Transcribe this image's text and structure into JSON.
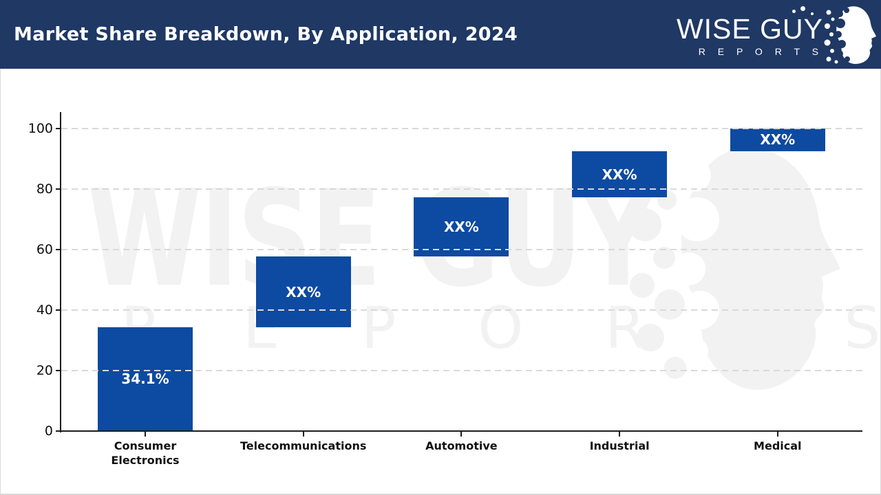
{
  "header": {
    "title": "Market Share Breakdown, By Application, 2024",
    "bg_color": "#1f3864",
    "logo": {
      "line1": "WISE GUY",
      "line2": "R E P O R T S"
    }
  },
  "watermark": {
    "line1": "WISE GUY",
    "line2": "R E P O R T S"
  },
  "chart_data": {
    "type": "bar",
    "subtype": "waterfall",
    "title": "Market Share Breakdown, By Application, 2024",
    "categories": [
      "Consumer Electronics",
      "Telecommunications",
      "Automotive",
      "Industrial",
      "Medical"
    ],
    "category_lines": [
      [
        "Consumer",
        "Electronics"
      ],
      [
        "Telecommunications"
      ],
      [
        "Automotive"
      ],
      [
        "Industrial"
      ],
      [
        "Medical"
      ]
    ],
    "starts": [
      0,
      34.1,
      57.6,
      77.1,
      92.4
    ],
    "values": [
      34.1,
      23.5,
      19.5,
      15.3,
      7.6
    ],
    "bar_labels": [
      "34.1%",
      "XX%",
      "XX%",
      "XX%",
      "XX%"
    ],
    "yticks": [
      0,
      20,
      40,
      60,
      80,
      100
    ],
    "ylim": [
      0,
      105
    ],
    "xlabel": "",
    "ylabel": "",
    "grid": {
      "axis": "y",
      "style": "dashed",
      "color": "#d9d9d9"
    },
    "bar_color": "#0d4aa1",
    "bar_label_color": "#ffffff",
    "axis_color": "#1c1c1c"
  }
}
